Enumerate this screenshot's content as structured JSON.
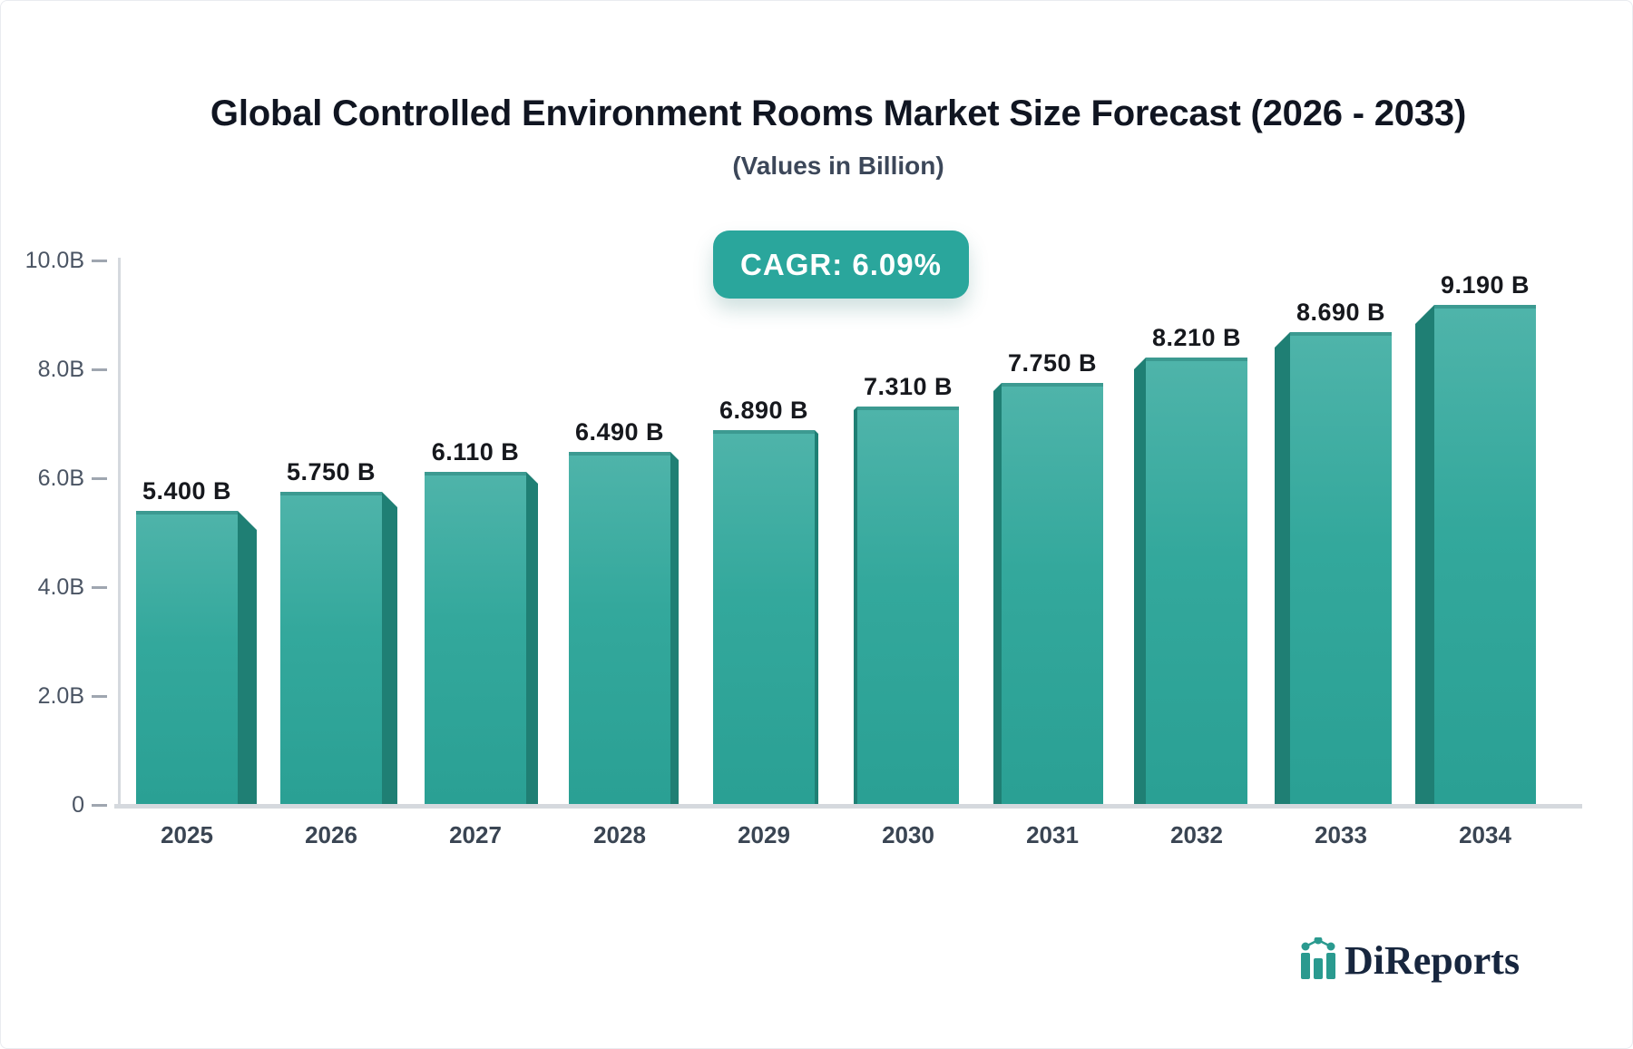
{
  "header": {
    "title": "Global Controlled Environment Rooms Market Size Forecast (2026 - 2033)",
    "subtitle": "(Values in Billion)",
    "cagr_badge": "CAGR: 6.09%"
  },
  "chart_data": {
    "type": "bar",
    "title": "Global Controlled Environment Rooms Market Size Forecast (2026 - 2033)",
    "subtitle": "(Values in Billion)",
    "cagr_percent": "6.09%",
    "categories": [
      "2025",
      "2026",
      "2027",
      "2028",
      "2029",
      "2030",
      "2031",
      "2032",
      "2033",
      "2034"
    ],
    "values": [
      5.4,
      5.75,
      6.11,
      6.49,
      6.89,
      7.31,
      7.75,
      8.21,
      8.69,
      9.19
    ],
    "value_labels": [
      "5.400 B",
      "5.750 B",
      "6.110 B",
      "6.490 B",
      "6.890 B",
      "7.310 B",
      "7.750 B",
      "8.210 B",
      "8.690 B",
      "9.190 B"
    ],
    "xlabel": "",
    "ylabel": "",
    "ylim": [
      0,
      10
    ],
    "y_ticks": [
      {
        "value": 10,
        "label": "10.0B"
      },
      {
        "value": 8,
        "label": "8.0B"
      },
      {
        "value": 6,
        "label": "6.0B"
      },
      {
        "value": 4,
        "label": "4.0B"
      },
      {
        "value": 2,
        "label": "2.0B"
      },
      {
        "value": 0,
        "label": "0"
      }
    ],
    "grid": false,
    "legend": false,
    "bar_style": "3d-perspective",
    "colors": {
      "bar_face": "#33a89c",
      "bar_face_light": "#4fb4aa",
      "bar_side": "#1f7f74",
      "badge_background": "#2aa69c",
      "badge_text": "#ffffff",
      "axis_line": "#d5d9de",
      "tick_text": "#4a5463",
      "category_text": "#3a4553",
      "value_text": "#16181d",
      "title_text": "#101521",
      "logo_text": "#17263e",
      "logo_icon": "#2a9a8f"
    }
  },
  "branding": {
    "logo_text": "DiReports",
    "logo_icon": "mini-bar-chart-icon"
  }
}
